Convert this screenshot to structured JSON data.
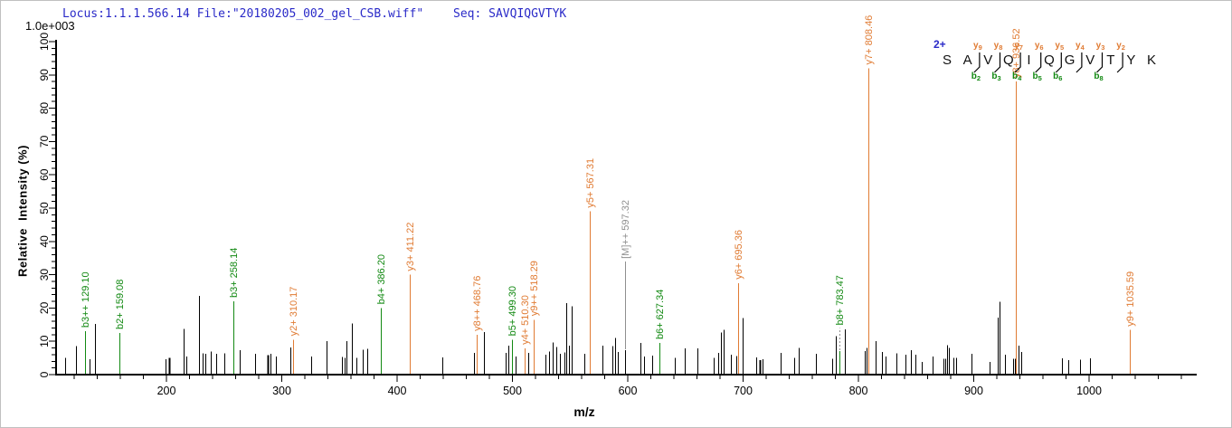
{
  "header": {
    "locus_text": "Locus:1.1.1.566.14 File:\"20180205_002_gel_CSB.wiff\"",
    "seq_text": "Seq: SAVQIQGVTYK",
    "scale_text": "1.0e+003"
  },
  "colors": {
    "header_blue": "#2a2ac8",
    "y_ion_orange": "#e07b33",
    "b_ion_green": "#128912",
    "precursor_gray": "#8f8f8f",
    "peak_black": "#000000",
    "axis_black": "#000000"
  },
  "axes": {
    "x_label": "m/z",
    "y_label": "Relative  Intensity (%)",
    "x_major_ticks": [
      200,
      300,
      400,
      500,
      600,
      700,
      800,
      900,
      1000
    ],
    "x_minor_step": 20,
    "x_min": 105,
    "x_max": 1080,
    "y_major_ticks": [
      0,
      10,
      20,
      30,
      40,
      50,
      60,
      70,
      80,
      90,
      100
    ],
    "y_minor_step": 2,
    "y_min": 0,
    "y_max": 100
  },
  "sequence_panel": {
    "charge_label": "2+",
    "residues": [
      "S",
      "A",
      "V",
      "Q",
      "I",
      "Q",
      "G",
      "V",
      "T",
      "Y",
      "K"
    ],
    "cleavages": [
      {
        "gap": 1,
        "y": "y9",
        "b": "b2"
      },
      {
        "gap": 2,
        "y": "y8",
        "b": "b3"
      },
      {
        "gap": 3,
        "y": "y7",
        "b": "b4"
      },
      {
        "gap": 4,
        "y": "y6",
        "b": "b5"
      },
      {
        "gap": 5,
        "y": "y5",
        "b": "b6"
      },
      {
        "gap": 6,
        "y": "y4",
        "b": ""
      },
      {
        "gap": 7,
        "y": "y3",
        "b": "b8"
      },
      {
        "gap": 8,
        "y": "y2",
        "b": ""
      }
    ]
  },
  "chart_data": {
    "type": "bar",
    "subtype": "ms2-stick-spectrum",
    "title": "",
    "xlabel": "m/z",
    "ylabel": "Relative Intensity (%)",
    "xlim": [
      105,
      1080
    ],
    "ylim": [
      0,
      100
    ],
    "grid": false,
    "peaks": [
      {
        "mz": 112,
        "pct": 5.0
      },
      {
        "mz": 121.5,
        "pct": 8.6
      },
      {
        "mz": 129.1,
        "pct": 13.0,
        "ion": "b",
        "label": "b3++ 129.10"
      },
      {
        "mz": 133,
        "pct": 4.6
      },
      {
        "mz": 138,
        "pct": 15.2
      },
      {
        "mz": 159.08,
        "pct": 12.5,
        "ion": "b",
        "label": "b2+ 159.08"
      },
      {
        "mz": 199,
        "pct": 4.6
      },
      {
        "mz": 202,
        "pct": 5.0,
        "w": 2
      },
      {
        "mz": 215,
        "pct": 13.7
      },
      {
        "mz": 217.5,
        "pct": 5.5
      },
      {
        "mz": 228,
        "pct": 23.7
      },
      {
        "mz": 231.5,
        "pct": 6.4
      },
      {
        "mz": 233.5,
        "pct": 6.2
      },
      {
        "mz": 238.5,
        "pct": 6.9
      },
      {
        "mz": 243,
        "pct": 6.2
      },
      {
        "mz": 250,
        "pct": 6.4
      },
      {
        "mz": 258.14,
        "pct": 22.0,
        "ion": "b",
        "label": "b3+ 258.14"
      },
      {
        "mz": 263.5,
        "pct": 7.4
      },
      {
        "mz": 277,
        "pct": 6.2
      },
      {
        "mz": 288,
        "pct": 5.9,
        "w": 2
      },
      {
        "mz": 290.5,
        "pct": 6.2
      },
      {
        "mz": 295,
        "pct": 5.5
      },
      {
        "mz": 307.5,
        "pct": 8.2
      },
      {
        "mz": 310.17,
        "pct": 10.5,
        "ion": "y",
        "label": "y2+ 310.17"
      },
      {
        "mz": 325.5,
        "pct": 5.5
      },
      {
        "mz": 339,
        "pct": 10.0
      },
      {
        "mz": 352,
        "pct": 5.3
      },
      {
        "mz": 354.5,
        "pct": 5.0
      },
      {
        "mz": 356,
        "pct": 10.0
      },
      {
        "mz": 361,
        "pct": 15.3
      },
      {
        "mz": 364.5,
        "pct": 5.0
      },
      {
        "mz": 370,
        "pct": 7.5
      },
      {
        "mz": 374,
        "pct": 7.7
      },
      {
        "mz": 386.2,
        "pct": 20.0,
        "ion": "b",
        "label": "b4+ 386.20"
      },
      {
        "mz": 411.22,
        "pct": 30.0,
        "ion": "y",
        "label": "y3+ 411.22"
      },
      {
        "mz": 439,
        "pct": 5.2
      },
      {
        "mz": 467,
        "pct": 6.5
      },
      {
        "mz": 468.76,
        "pct": 12.0,
        "ion": "y",
        "label": "y8++ 468.76"
      },
      {
        "mz": 475.5,
        "pct": 12.8
      },
      {
        "mz": 494,
        "pct": 6.5
      },
      {
        "mz": 496.5,
        "pct": 8.7
      },
      {
        "mz": 499.3,
        "pct": 10.5,
        "ion": "b",
        "label": "b5+ 499.30"
      },
      {
        "mz": 503,
        "pct": 5.5
      },
      {
        "mz": 510.3,
        "pct": 7.9,
        "ion": "y",
        "label": "y4+ 510.30"
      },
      {
        "mz": 513.5,
        "pct": 6.5
      },
      {
        "mz": 518.29,
        "pct": 16.5,
        "ion": "y",
        "label": "y9++ 518.29"
      },
      {
        "mz": 528.5,
        "pct": 6.0
      },
      {
        "mz": 531.5,
        "pct": 6.9
      },
      {
        "mz": 535,
        "pct": 9.6
      },
      {
        "mz": 538,
        "pct": 8.3
      },
      {
        "mz": 541,
        "pct": 6.3
      },
      {
        "mz": 545,
        "pct": 6.7
      },
      {
        "mz": 546.5,
        "pct": 21.5
      },
      {
        "mz": 549,
        "pct": 8.7
      },
      {
        "mz": 551.5,
        "pct": 20.5
      },
      {
        "mz": 562.5,
        "pct": 6.3
      },
      {
        "mz": 567.31,
        "pct": 49.0,
        "ion": "y",
        "label": "y5+ 567.31"
      },
      {
        "mz": 578,
        "pct": 8.7
      },
      {
        "mz": 586.5,
        "pct": 8.5
      },
      {
        "mz": 589,
        "pct": 11.0
      },
      {
        "mz": 591,
        "pct": 6.8
      },
      {
        "mz": 597.32,
        "pct": 7.4,
        "ion": "M",
        "label": "[M]++ 597.32",
        "label_at": 34,
        "leader": "solid"
      },
      {
        "mz": 611,
        "pct": 9.5
      },
      {
        "mz": 614.5,
        "pct": 5.5
      },
      {
        "mz": 621,
        "pct": 5.7
      },
      {
        "mz": 627.34,
        "pct": 9.5,
        "ion": "b",
        "label": "b6+ 627.34"
      },
      {
        "mz": 641,
        "pct": 5.0
      },
      {
        "mz": 649.5,
        "pct": 7.9
      },
      {
        "mz": 660,
        "pct": 7.9
      },
      {
        "mz": 674.5,
        "pct": 5.0
      },
      {
        "mz": 678.5,
        "pct": 6.5
      },
      {
        "mz": 681,
        "pct": 12.6
      },
      {
        "mz": 683,
        "pct": 13.4
      },
      {
        "mz": 689.5,
        "pct": 6.0
      },
      {
        "mz": 694,
        "pct": 5.6
      },
      {
        "mz": 695.36,
        "pct": 27.5,
        "ion": "y",
        "label": "y6+ 695.36"
      },
      {
        "mz": 699.5,
        "pct": 17.0
      },
      {
        "mz": 711.5,
        "pct": 5.2
      },
      {
        "mz": 714.5,
        "pct": 4.4,
        "w": 2
      },
      {
        "mz": 717,
        "pct": 4.6
      },
      {
        "mz": 732.5,
        "pct": 6.5
      },
      {
        "mz": 744.5,
        "pct": 5.0
      },
      {
        "mz": 748,
        "pct": 8.0
      },
      {
        "mz": 763,
        "pct": 6.3
      },
      {
        "mz": 777.5,
        "pct": 4.7
      },
      {
        "mz": 780.5,
        "pct": 11.5
      },
      {
        "mz": 783.47,
        "pct": 7.0,
        "ion": "b",
        "label": "b8+ 783.47",
        "label_at": 14,
        "leader": "dashed"
      },
      {
        "mz": 788,
        "pct": 13.6
      },
      {
        "mz": 805.5,
        "pct": 7.0
      },
      {
        "mz": 807,
        "pct": 8.0
      },
      {
        "mz": 808.46,
        "pct": 92.0,
        "ion": "y",
        "label": "y7+ 808.46"
      },
      {
        "mz": 815,
        "pct": 10.0
      },
      {
        "mz": 820.5,
        "pct": 6.8
      },
      {
        "mz": 823.5,
        "pct": 5.5
      },
      {
        "mz": 833,
        "pct": 6.4
      },
      {
        "mz": 841,
        "pct": 6.0
      },
      {
        "mz": 845.5,
        "pct": 7.4
      },
      {
        "mz": 849.5,
        "pct": 6.0
      },
      {
        "mz": 855,
        "pct": 3.8
      },
      {
        "mz": 864.5,
        "pct": 5.5
      },
      {
        "mz": 874,
        "pct": 4.7
      },
      {
        "mz": 875.5,
        "pct": 4.7
      },
      {
        "mz": 877,
        "pct": 8.8
      },
      {
        "mz": 878.5,
        "pct": 8.0
      },
      {
        "mz": 882.5,
        "pct": 5.0
      },
      {
        "mz": 884.5,
        "pct": 5.0
      },
      {
        "mz": 898,
        "pct": 6.2
      },
      {
        "mz": 914,
        "pct": 3.8
      },
      {
        "mz": 921,
        "pct": 17.1
      },
      {
        "mz": 922.5,
        "pct": 21.9
      },
      {
        "mz": 927,
        "pct": 6.0
      },
      {
        "mz": 934,
        "pct": 4.7
      },
      {
        "mz": 935.5,
        "pct": 4.7
      },
      {
        "mz": 936.52,
        "pct": 88.0,
        "ion": "y",
        "label": "y8+ 936.52"
      },
      {
        "mz": 938.5,
        "pct": 8.7
      },
      {
        "mz": 941.5,
        "pct": 6.8
      },
      {
        "mz": 976.5,
        "pct": 4.9
      },
      {
        "mz": 982,
        "pct": 4.4
      },
      {
        "mz": 992,
        "pct": 4.5
      },
      {
        "mz": 1000.5,
        "pct": 4.9
      },
      {
        "mz": 1035.59,
        "pct": 13.4,
        "ion": "y",
        "label": "y9+ 1035.59"
      }
    ]
  }
}
